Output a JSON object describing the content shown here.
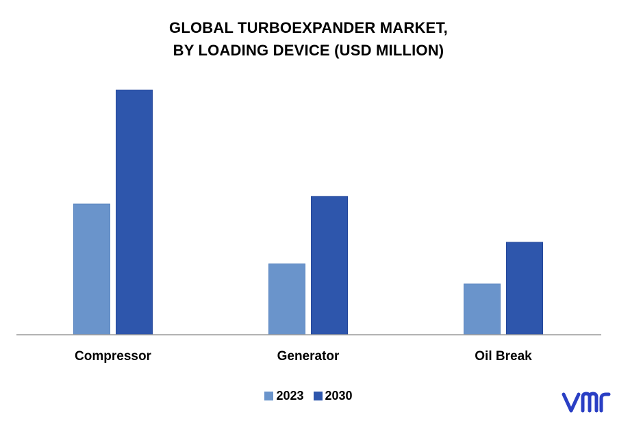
{
  "chart_data": {
    "type": "bar",
    "title_lines": [
      "GLOBAL TURBOEXPANDER MARKET,",
      "BY LOADING DEVICE (USD MILLION)"
    ],
    "categories": [
      "Compressor",
      "Generator",
      "Oil Break"
    ],
    "series": [
      {
        "name": "2023",
        "color": "#6a94cb",
        "values": [
          188,
          102,
          73
        ]
      },
      {
        "name": "2030",
        "color": "#2e56ac",
        "values": [
          352,
          199,
          133
        ]
      }
    ],
    "ylim": [
      0,
      380
    ],
    "grid": false,
    "legend_position": "bottom-center",
    "axis_color": "#9a9a9a"
  },
  "logo": {
    "icon": "vmr-logo-icon",
    "color": "#2a3fc4"
  }
}
